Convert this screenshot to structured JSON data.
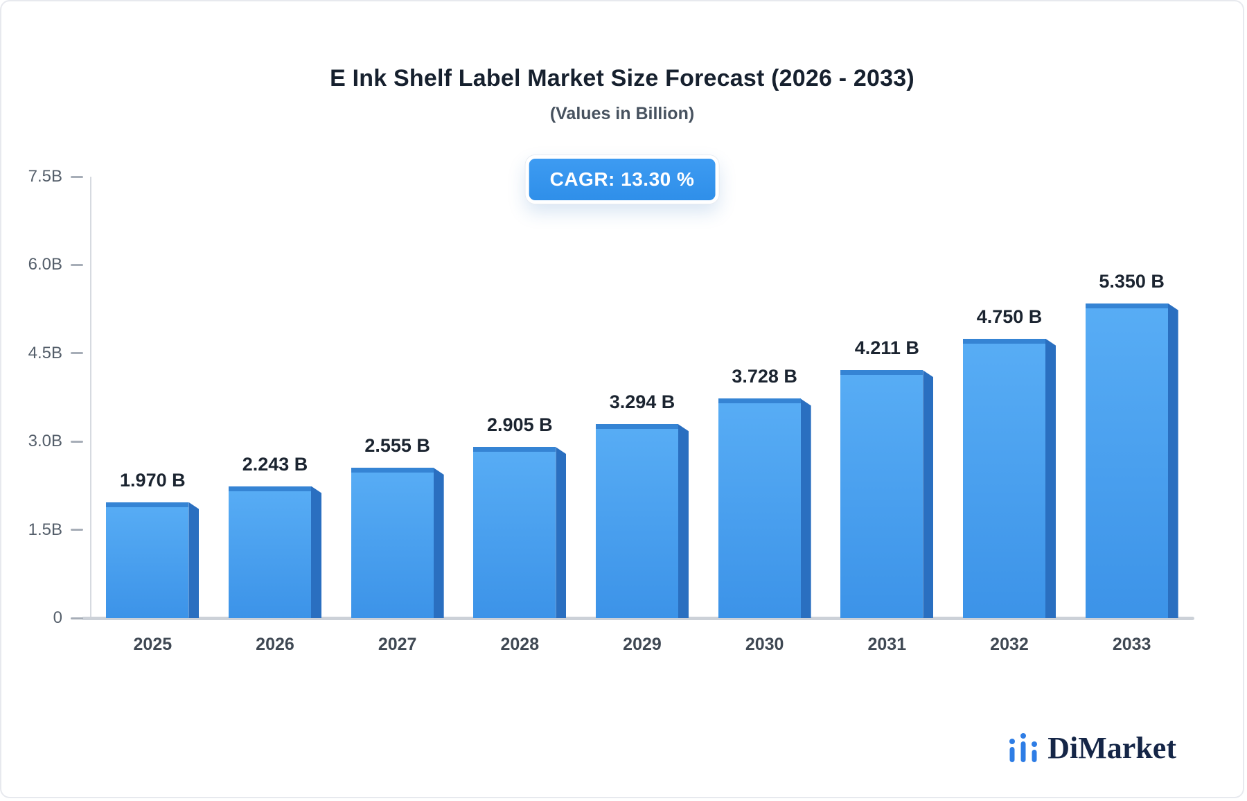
{
  "header": {
    "title": "E Ink Shelf Label Market Size Forecast (2026 - 2033)",
    "subtitle": "(Values in Billion)",
    "cagr_badge": "CAGR: 13.30 %"
  },
  "chart_data": {
    "type": "bar",
    "title": "E Ink Shelf Label Market Size Forecast (2026 - 2033)",
    "subtitle": "(Values in Billion)",
    "cagr": "13.30 %",
    "categories": [
      "2025",
      "2026",
      "2027",
      "2028",
      "2029",
      "2030",
      "2031",
      "2032",
      "2033"
    ],
    "values": [
      1.97,
      2.243,
      2.555,
      2.905,
      3.294,
      3.728,
      4.211,
      4.75,
      5.35
    ],
    "value_labels": [
      "1.970 B",
      "2.243 B",
      "2.555 B",
      "2.905 B",
      "3.294 B",
      "3.728 B",
      "4.211 B",
      "4.750 B",
      "5.350 B"
    ],
    "xlabel": "",
    "ylabel": "",
    "ylim": [
      0,
      7.5
    ],
    "yticks": {
      "values": [
        0,
        1.5,
        3.0,
        4.5,
        6.0,
        7.5
      ],
      "labels": [
        "0",
        "1.5B",
        "3.0B",
        "4.5B",
        "6.0B",
        "7.5B"
      ]
    },
    "grid": false,
    "legend": false
  },
  "colors": {
    "badge_bg": "#3d9bf2",
    "bar_top": "#58adf5",
    "bar_bottom": "#3c93e8",
    "bar_side": "#2a6fc0",
    "bar_edge": "#3584d4",
    "logo_blue": "#2e7de5",
    "logo_text": "#152647"
  },
  "branding": {
    "name": "DiMarket"
  }
}
